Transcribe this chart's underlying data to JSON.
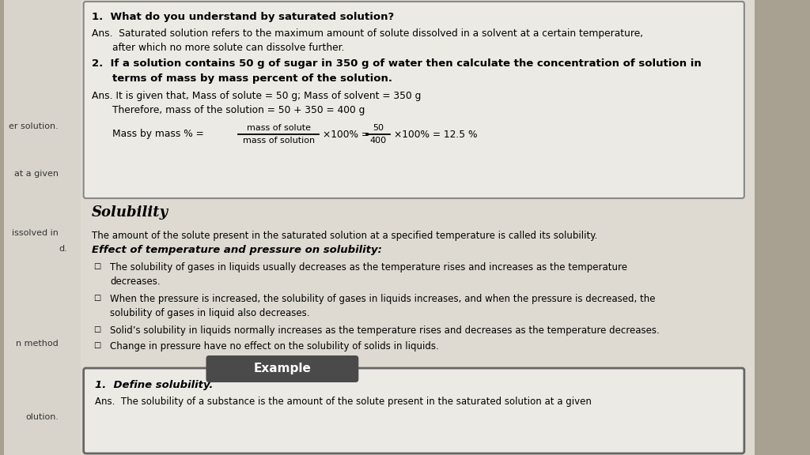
{
  "bg_color": "#a8a090",
  "left_strip_color": "#d8d4cc",
  "page_bg": "#dedad2",
  "box1_bg": "#eceae4",
  "example_header_bg": "#4a4a4a",
  "example_box_bg": "#eceae4",
  "title_q1": "1.  What do you understand by saturated solution?",
  "ans1_line1": "Ans.  Saturated solution refers to the maximum amount of solute dissolved in a solvent at a certain temperature,",
  "ans1_line2": "after which no more solute can dissolve further.",
  "q2_line1": "2.  If a solution contains 50 g of sugar in 350 g of water then calculate the concentration of solution in",
  "q2_line2": "terms of mass by mass percent of the solution.",
  "ans2_line1": "Ans. It is given that, Mass of solute = 50 g; Mass of solvent = 350 g",
  "ans2_line2": "Therefore, mass of the solution = 50 + 350 = 400 g",
  "formula_prefix": "Mass by mass % =",
  "frac_num": "mass of solute",
  "frac_den": "mass of solution",
  "formula_mid": "×100% =",
  "frac2_num": "50",
  "frac2_den": "400",
  "formula_end": "×100% = 12.5 %",
  "solubility_title": "Solubility",
  "solubility_def": "The amount of the solute present in the saturated solution at a specified temperature is called its solubility.",
  "effect_title": "Effect of temperature and pressure on solubility:",
  "bullet1_l1": "The solubility of gases in liquids usually decreases as the temperature rises and increases as the temperature",
  "bullet1_l2": "decreases.",
  "bullet2_l1": "When the pressure is increased, the solubility of gases in liquids increases, and when the pressure is decreased, the",
  "bullet2_l2": "solubility of gases in liquid also decreases.",
  "bullet3": "Solid’s solubility in liquids normally increases as the temperature rises and decreases as the temperature decreases.",
  "bullet4": "Change in pressure have no effect on the solubility of solids in liquids.",
  "example_label": "Example",
  "example_q1": "1.  Define solubility.",
  "example_ans1": "Ans.  The solubility of a substance is the amount of the solute present in the saturated solution at a given"
}
